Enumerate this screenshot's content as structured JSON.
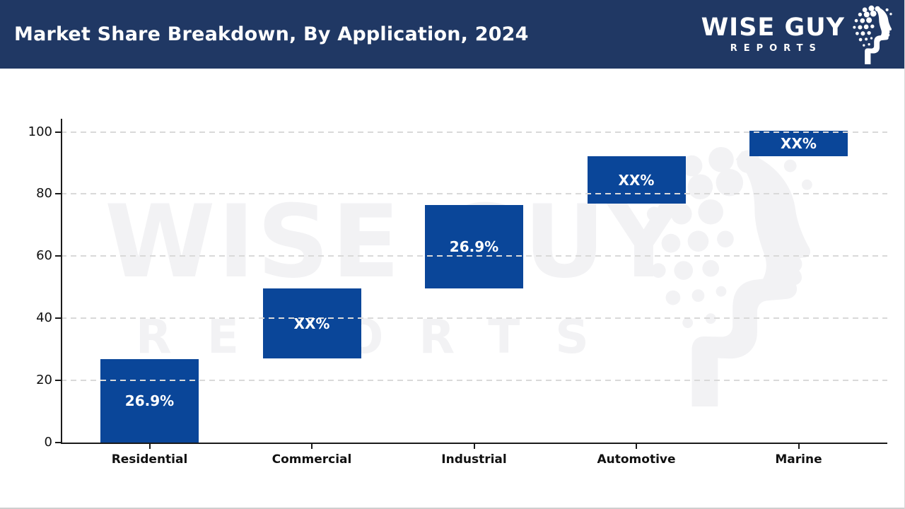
{
  "header": {
    "title": "Market Share Breakdown, By Application, 2024",
    "bg_color": "#203864",
    "logo": {
      "line1": "WISE GUY",
      "line2": "REPORTS"
    }
  },
  "watermark": {
    "line1": "WISE GUY",
    "line2": "REPORTS"
  },
  "chart_data": {
    "type": "bar",
    "subtype": "waterfall-floating-bars",
    "title": "Market Share Breakdown, By Application, 2024",
    "xlabel": "",
    "ylabel": "",
    "categories": [
      "Residential",
      "Commercial",
      "Industrial",
      "Automotive",
      "Marine"
    ],
    "segments": [
      {
        "category": "Residential",
        "start": 0,
        "end": 26.9,
        "label": "26.9%"
      },
      {
        "category": "Commercial",
        "start": 27.0,
        "end": 49.5,
        "label": "XX%"
      },
      {
        "category": "Industrial",
        "start": 49.6,
        "end": 76.5,
        "label": "26.9%"
      },
      {
        "category": "Automotive",
        "start": 76.8,
        "end": 92.1,
        "label": "XX%"
      },
      {
        "category": "Marine",
        "start": 92.2,
        "end": 100.4,
        "label": "XX%"
      }
    ],
    "y_ticks": [
      0,
      20,
      40,
      60,
      80,
      100
    ],
    "ylim": [
      0,
      104
    ],
    "grid": true,
    "legend": "none",
    "bar_color": "#0a4699",
    "bar_label_color": "#ffffff",
    "gridline_color": "#d9d9d9",
    "axis_color": "#1a1a1a"
  }
}
